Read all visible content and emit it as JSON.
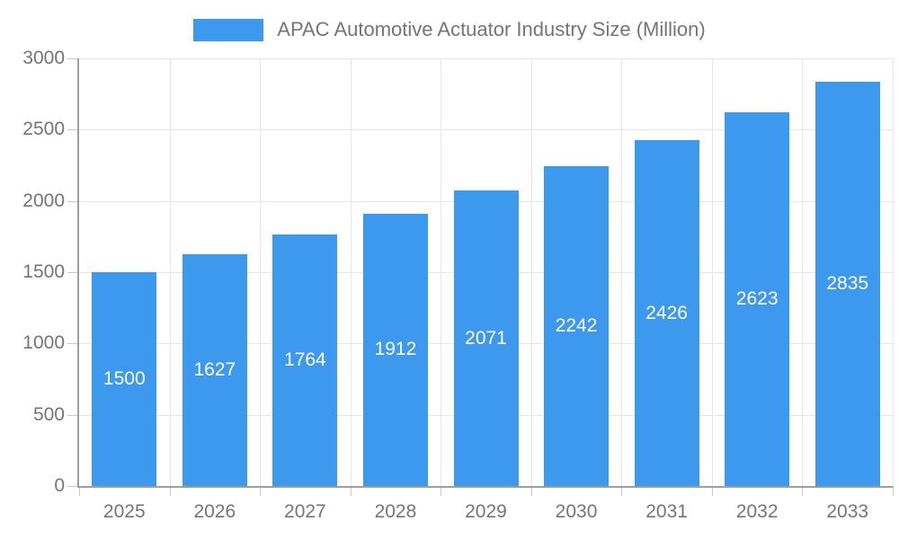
{
  "legend": {
    "label": "APAC Automotive Actuator Industry Size (Million)"
  },
  "style": {
    "bar_color": "#3D99EE",
    "grid_color": "#E6E6E6",
    "axis_color": "#9E9E9E",
    "tick_color": "#C9C9C9",
    "text_color": "#757575",
    "bar_label_color": "#FFFFFF",
    "background": "#FFFFFF"
  },
  "chart_data": {
    "type": "bar",
    "title": "APAC Automotive Actuator Industry Size (Million)",
    "categories": [
      "2025",
      "2026",
      "2027",
      "2028",
      "2029",
      "2030",
      "2031",
      "2032",
      "2033"
    ],
    "values": [
      1500,
      1627,
      1764,
      1912,
      2071,
      2242,
      2426,
      2623,
      2835
    ],
    "xlabel": "",
    "ylabel": "",
    "ylim": [
      0,
      3000
    ],
    "yticks": [
      0,
      500,
      1000,
      1500,
      2000,
      2500,
      3000
    ],
    "grid": true,
    "legend_position": "top",
    "bar_label_position": "inside-center"
  }
}
